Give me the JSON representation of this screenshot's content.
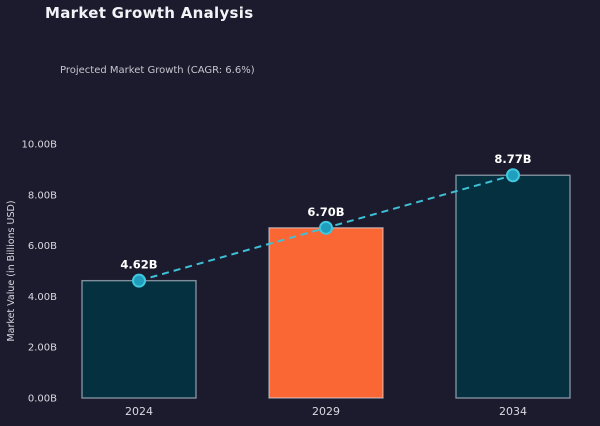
{
  "page": {
    "title": "Market Growth Analysis",
    "subtitle": "Projected Market Growth (CAGR: 6.6%)"
  },
  "colors": {
    "background": "#1c1b2d",
    "title_text": "#f2f2f7",
    "subtitle_text": "#c6c6cf",
    "axis_text": "#d9d9e2",
    "data_label_text": "#ffffff",
    "bar_teal": "#05303f",
    "bar_orange": "#fa6634",
    "bar_border": "rgba(220,230,240,0.55)",
    "trend_line": "#3fc0d6",
    "marker_fill": "#1f9fbd",
    "marker_stroke": "#3fc8de"
  },
  "chart_data": {
    "type": "bar",
    "title": "Market Growth Analysis",
    "subtitle": "Projected Market Growth (CAGR: 6.6%)",
    "categories": [
      "2024",
      "2029",
      "2034"
    ],
    "values": [
      4.62,
      6.7,
      8.77
    ],
    "data_labels": [
      "4.62B",
      "6.70B",
      "8.77B"
    ],
    "bar_colors": [
      "#05303f",
      "#fa6634",
      "#05303f"
    ],
    "xlabel": "",
    "ylabel": "Market Value (in Billions USD)",
    "yticks": [
      "0.00B",
      "2.00B",
      "4.00B",
      "6.00B",
      "8.00B",
      "10.00B"
    ],
    "ytick_values": [
      0,
      2,
      4,
      6,
      8,
      10
    ],
    "ylim": [
      0,
      10
    ],
    "grid": false,
    "legend": "none",
    "trend_line": true
  }
}
